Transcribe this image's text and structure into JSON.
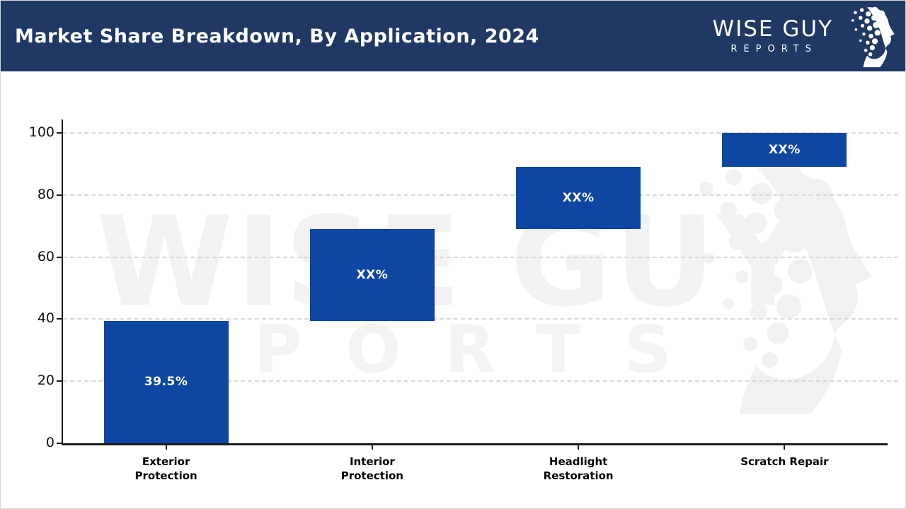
{
  "header": {
    "title": "Market Share Breakdown, By Application, 2024",
    "logo": {
      "line1": "WISE GUY",
      "line2": "REPORTS"
    }
  },
  "watermark": {
    "line1": "WISE GUY",
    "line2": "PORTS"
  },
  "chart_data": {
    "type": "bar",
    "subtype": "floating-waterfall",
    "title": "Market Share Breakdown, By Application, 2024",
    "categories": [
      "Exterior\nProtection",
      "Interior\nProtection",
      "Headlight\nRestoration",
      "Scratch Repair"
    ],
    "segments": [
      {
        "category": "Exterior Protection",
        "start": 0,
        "end": 39.5,
        "label": "39.5%"
      },
      {
        "category": "Interior Protection",
        "start": 39.5,
        "end": 69,
        "label": "XX%"
      },
      {
        "category": "Headlight Restoration",
        "start": 69,
        "end": 89,
        "label": "XX%"
      },
      {
        "category": "Scratch Repair",
        "start": 89,
        "end": 100,
        "label": "XX%"
      }
    ],
    "values": [
      39.5,
      29.5,
      20,
      11
    ],
    "yticks": [
      0,
      20,
      40,
      60,
      80,
      100
    ],
    "ylim": [
      0,
      100
    ],
    "xlabel": "",
    "ylabel": "",
    "grid": "dashed-horizontal",
    "legend": "none",
    "colors": {
      "bar": "#0d47a1",
      "header_bg": "#1f3864",
      "axis": "#1a1a1a",
      "grid": "#d9d9d9",
      "bar_label": "#ffffff",
      "watermark": "#f2f2f2"
    }
  }
}
